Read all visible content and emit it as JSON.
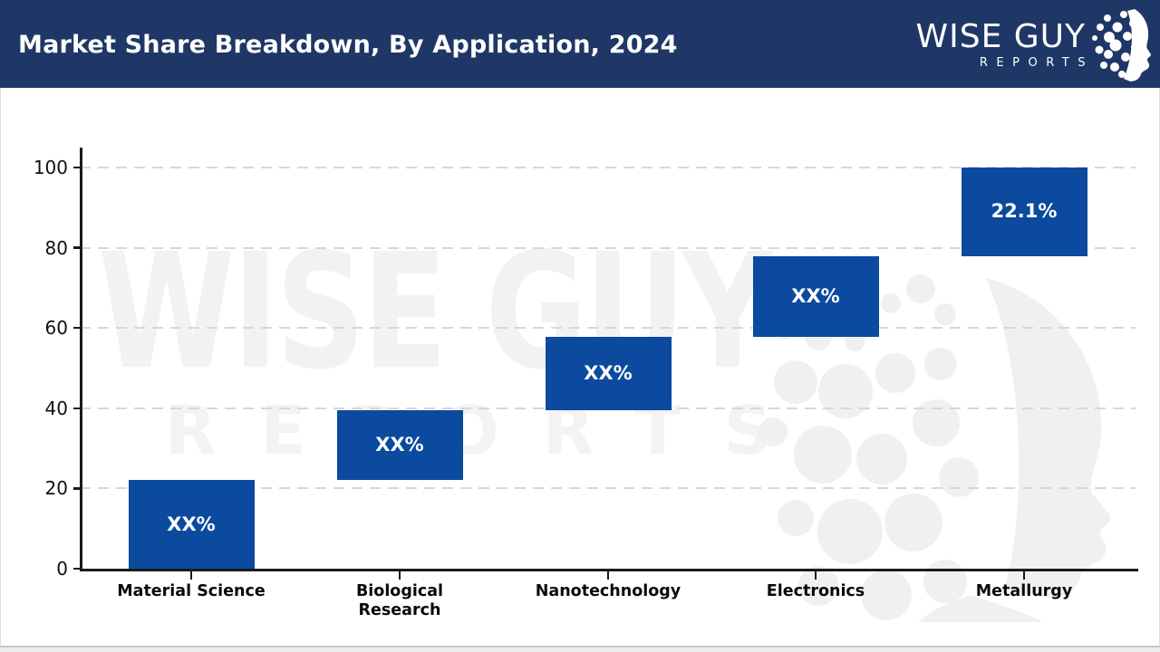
{
  "header": {
    "title": "Market Share Breakdown, By Application, 2024",
    "logo": {
      "line1": "WISE GUY",
      "line2": "REPORTS"
    }
  },
  "watermark": {
    "line1": "WISE GUY",
    "line2": "REPORTS"
  },
  "chart_data": {
    "type": "bar",
    "subtype": "waterfall",
    "title": "Market Share Breakdown, By Application, 2024",
    "xlabel": "",
    "ylabel": "",
    "ylim": [
      0,
      100
    ],
    "yticks": [
      0,
      20,
      40,
      60,
      80,
      100
    ],
    "grid": "horizontal-dashed",
    "legend": "none",
    "categories": [
      "Material Science",
      "Biological Research",
      "Nanotechnology",
      "Electronics",
      "Metallurgy"
    ],
    "bars": [
      {
        "category": "Material Science",
        "tick_lines": [
          "Material Science"
        ],
        "start": 0,
        "end": 22.1,
        "label": "XX%"
      },
      {
        "category": "Biological Research",
        "tick_lines": [
          "Biological",
          "Research"
        ],
        "start": 22.1,
        "end": 39.6,
        "label": "XX%"
      },
      {
        "category": "Nanotechnology",
        "tick_lines": [
          "Nanotechnology"
        ],
        "start": 39.6,
        "end": 57.7,
        "label": "XX%"
      },
      {
        "category": "Electronics",
        "tick_lines": [
          "Electronics"
        ],
        "start": 57.7,
        "end": 77.9,
        "label": "XX%"
      },
      {
        "category": "Metallurgy",
        "tick_lines": [
          "Metallurgy"
        ],
        "start": 77.9,
        "end": 100,
        "label": "22.1%"
      }
    ],
    "bar_color": "#0b4a9e",
    "bar_label_color": "#ffffff"
  },
  "colors": {
    "header_bg": "#1f3766",
    "bar_blue": "#0b4a9e",
    "watermark_gray": "#f2f2f2",
    "grid_gray": "#d7d7d7",
    "axis_dark": "#1a1a1a"
  }
}
